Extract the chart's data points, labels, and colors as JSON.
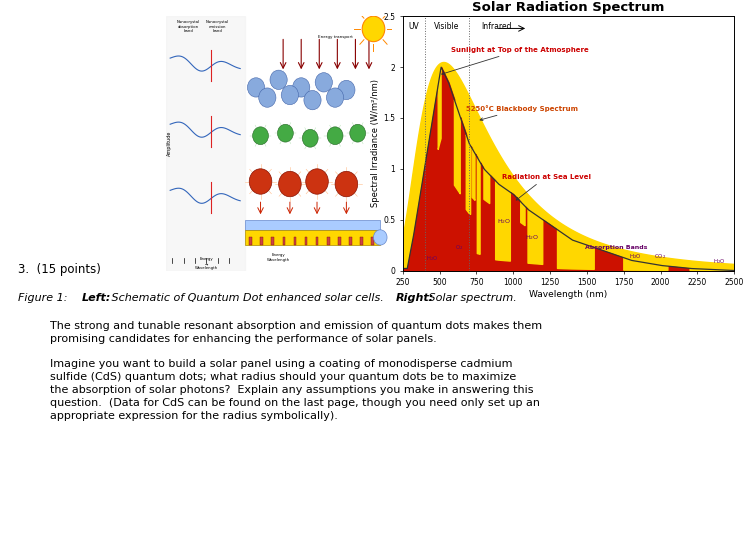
{
  "title": "Solar Radiation Spectrum",
  "xlabel": "Wavelength (nm)",
  "ylabel": "Spectral Irradiance (W/m²/nm)",
  "xlim": [
    250,
    2500
  ],
  "ylim": [
    0,
    2.5
  ],
  "xticks": [
    250,
    500,
    750,
    1000,
    1250,
    1500,
    1750,
    2000,
    2250,
    2500
  ],
  "yticks": [
    0,
    0.5,
    1,
    1.5,
    2,
    2.5
  ],
  "uv_end": 400,
  "visible_end": 700,
  "uv_label": "UV",
  "visible_label": "Visible",
  "infrared_label": "Infrared",
  "label_sunlight": "Sunlight at Top of the Atmosphere",
  "label_blackbody": "5250°C Blackbody Spectrum",
  "label_sealevel": "Radiation at Sea Level",
  "label_absorption": "Absorption Bands",
  "color_sunlight_line": "#CC0000",
  "color_blackbody_line": "#FF8C00",
  "color_red_fill": "#CC0000",
  "color_yellow_fill": "#FFD700",
  "color_purple": "#660066",
  "background_color": "#ffffff",
  "fig_number": "3.",
  "fig_points": "(15 points)",
  "figure_caption": "Figure 1:",
  "caption_left_bold": "Left:",
  "caption_left_text": " Schematic of Quantum Dot enhanced solar cells.",
  "caption_right_bold": "Right:",
  "caption_right_text": " Solar spectrum.",
  "body_text_1": "The strong and tunable resonant absorption and emission of quantum dots makes them\npromising candidates for enhancing the performance of solar panels.",
  "body_text_2": "Imagine you want to build a solar panel using a coating of monodisperse cadmium\nsulfide (CdS) quantum dots; what radius should your quantum dots be to maximize\nthe absorption of solar photons?  Explain any assumptions you make in answering this\nquestion.  (Data for CdS can be found on the last page, though you need only set up an\nappropriate expression for the radius symbolically)."
}
